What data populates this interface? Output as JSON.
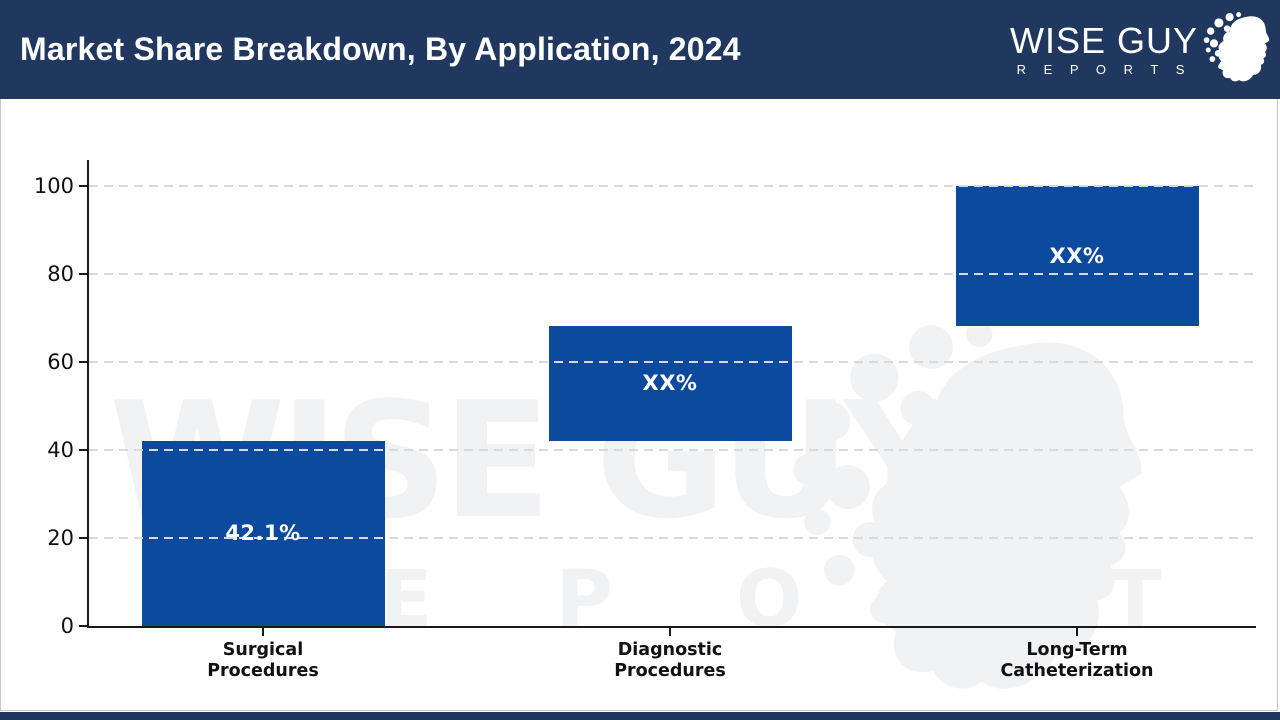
{
  "header": {
    "title": "Market Share Breakdown, By Application, 2024",
    "logo": {
      "wordmark": "WISE GUY",
      "subtext": "R E P O R T S"
    }
  },
  "watermark": {
    "wordmark": "WISE GUY",
    "subtext": "R E P O R T S"
  },
  "colors": {
    "header_bg": "#20375f",
    "bar": "#0c4a9e",
    "grid": "#d9d9d9",
    "axis": "#1a1a1a",
    "value_label": "#ffffff",
    "watermark": "#f1f2f4"
  },
  "chart_data": {
    "type": "bar",
    "subtype": "stacked-waterfall",
    "title": "Market Share Breakdown, By Application, 2024",
    "categories": [
      "Surgical Procedures",
      "Diagnostic Procedures",
      "Long-Term Catheterization"
    ],
    "category_lines": [
      [
        "Surgical",
        "Procedures"
      ],
      [
        "Diagnostic",
        "Procedures"
      ],
      [
        "Long-Term",
        "Catheterization"
      ]
    ],
    "segments": [
      {
        "category": "Surgical Procedures",
        "start": 0,
        "end": 42.1,
        "value": 42.1,
        "label": "42.1%"
      },
      {
        "category": "Diagnostic Procedures",
        "start": 42.1,
        "end": 68.2,
        "value": 26.1,
        "label": "XX%"
      },
      {
        "category": "Long-Term Catheterization",
        "start": 68.2,
        "end": 100,
        "value": 31.8,
        "label": "XX%"
      }
    ],
    "xlabel": "",
    "ylabel": "",
    "ylim": [
      0,
      100
    ],
    "yticks": [
      0,
      20,
      40,
      60,
      80,
      100
    ],
    "grid": "horizontal-dashed",
    "legend": "none",
    "bar_color": "#0c4a9e",
    "value_label_color": "#ffffff"
  }
}
